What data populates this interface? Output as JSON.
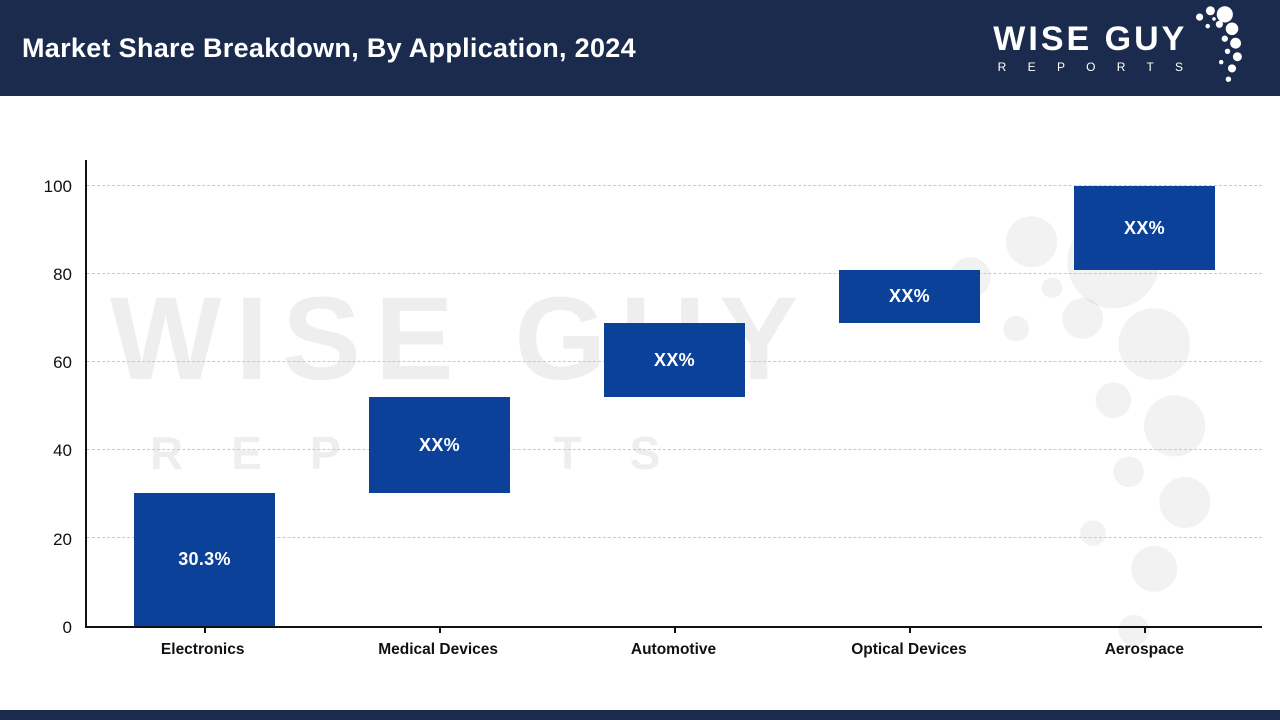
{
  "header": {
    "title": "Market Share Breakdown, By Application, 2024",
    "logo_line1": "WISE GUY",
    "logo_line2": "R E P O R T S",
    "bg_color": "#1b2b4d"
  },
  "watermark": {
    "line1": "WISE GUY",
    "line2": "REPORTS"
  },
  "chart_data": {
    "type": "bar",
    "subtype": "floating-waterfall",
    "title": "Market Share Breakdown, By Application, 2024",
    "categories": [
      "Electronics",
      "Medical Devices",
      "Automotive",
      "Optical Devices",
      "Aerospace"
    ],
    "segments": [
      {
        "category": "Electronics",
        "start": 0,
        "end": 30.3,
        "label": "30.3%"
      },
      {
        "category": "Medical Devices",
        "start": 30.3,
        "end": 52,
        "label": "XX%"
      },
      {
        "category": "Automotive",
        "start": 52,
        "end": 69,
        "label": "XX%"
      },
      {
        "category": "Optical Devices",
        "start": 69,
        "end": 81,
        "label": "XX%"
      },
      {
        "category": "Aerospace",
        "start": 81,
        "end": 100,
        "label": "XX%"
      }
    ],
    "yticks": [
      0,
      20,
      40,
      60,
      80,
      100
    ],
    "ylim": [
      0,
      100
    ],
    "xlabel": "",
    "ylabel": "",
    "bar_color": "#0c419a",
    "grid": "dashed horizontal",
    "legend": "none"
  }
}
